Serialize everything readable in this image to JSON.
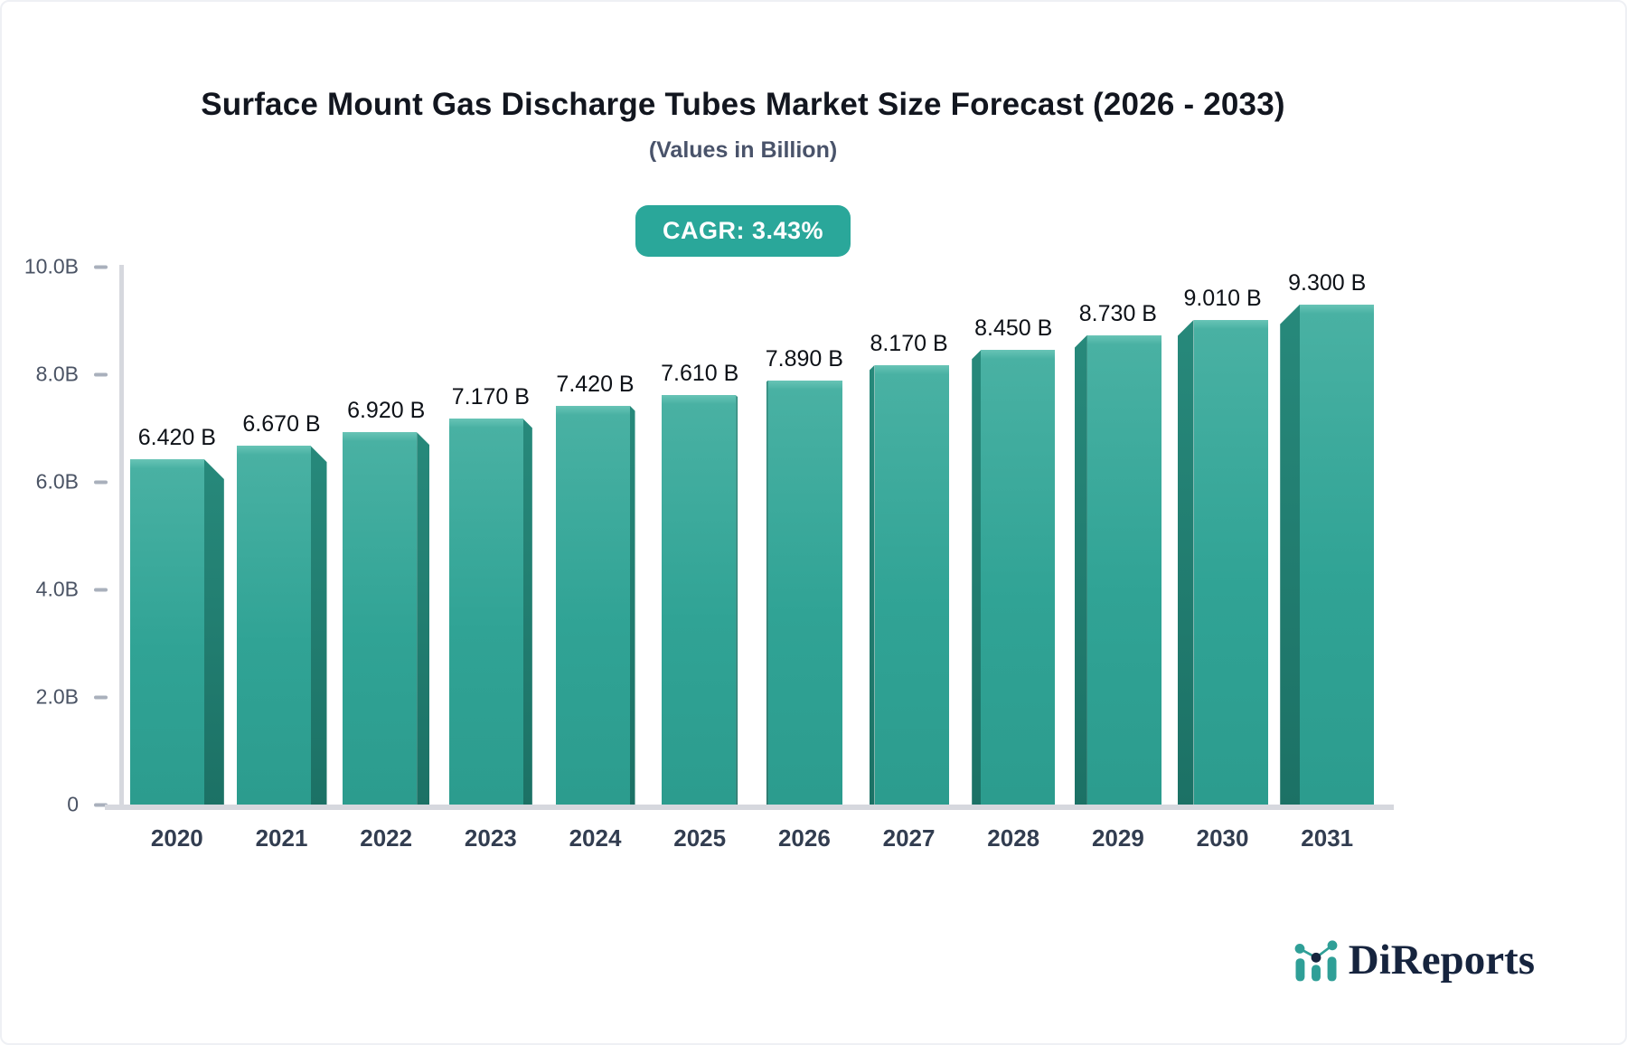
{
  "header": {
    "title": "Surface Mount Gas Discharge Tubes Market Size Forecast (2026 - 2033)",
    "subtitle": "(Values in Billion)",
    "cagr_label": "CAGR: 3.43%"
  },
  "chart_data": {
    "type": "bar",
    "title": "Surface Mount Gas Discharge Tubes Market Size Forecast (2026 - 2033)",
    "subtitle": "(Values in Billion)",
    "cagr": "3.43%",
    "categories": [
      "2020",
      "2021",
      "2022",
      "2023",
      "2024",
      "2025",
      "2026",
      "2027",
      "2028",
      "2029",
      "2030",
      "2031"
    ],
    "values": [
      6.42,
      6.67,
      6.92,
      7.17,
      7.42,
      7.61,
      7.89,
      8.17,
      8.45,
      8.73,
      9.01,
      9.3
    ],
    "value_labels": [
      "6.420 B",
      "6.670 B",
      "6.920 B",
      "7.170 B",
      "7.420 B",
      "7.610 B",
      "7.890 B",
      "8.170 B",
      "8.450 B",
      "8.730 B",
      "9.010 B",
      "9.300 B"
    ],
    "xlabel": "",
    "ylabel": "",
    "ylim": [
      0,
      10
    ],
    "yticks": [
      {
        "label": "10.0B",
        "value": 10
      },
      {
        "label": "8.0B",
        "value": 8
      },
      {
        "label": "6.0B",
        "value": 6
      },
      {
        "label": "4.0B",
        "value": 4
      },
      {
        "label": "2.0B",
        "value": 2
      },
      {
        "label": "0",
        "value": 0
      }
    ],
    "grid": false,
    "legend": false,
    "colors": {
      "bar_front": "#30a395",
      "bar_front_highlight": "#68c4b6",
      "bar_side": "#1e7c6f",
      "badge": "#2aa79a",
      "axis": "#d6d8de",
      "tick_text": "#4a5364",
      "category_text": "#323d50",
      "title_text": "#12161f"
    }
  },
  "footer": {
    "logo_text": "DiReports"
  }
}
